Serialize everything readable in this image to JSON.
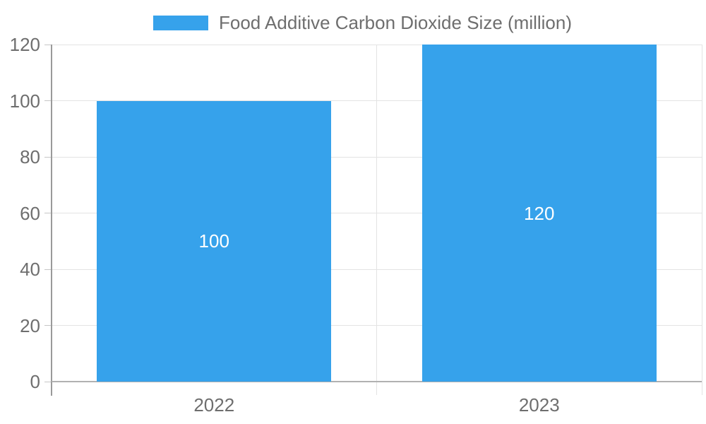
{
  "legend": {
    "label": "Food Additive Carbon Dioxide Size (million)",
    "swatch_color": "#36A2EB"
  },
  "chart_data": {
    "type": "bar",
    "title": "Food Additive Carbon Dioxide Size (million)",
    "categories": [
      "2022",
      "2023"
    ],
    "values": [
      100,
      120
    ],
    "value_labels": [
      "100",
      "120"
    ],
    "xlabel": "",
    "ylabel": "",
    "ylim": [
      0,
      120
    ],
    "ytick_interval": 20,
    "yticks": [
      0,
      20,
      40,
      60,
      80,
      100,
      120
    ],
    "grid": true,
    "legend_position": "top",
    "colors": {
      "bar": "#36A2EB",
      "axis_label": "#6e6e6e",
      "gridline": "#e3e3e3",
      "axis_line": "#9a9a9a",
      "baseline": "#b1b1b1",
      "value_label": "#ffffff",
      "background": "#ffffff"
    }
  }
}
